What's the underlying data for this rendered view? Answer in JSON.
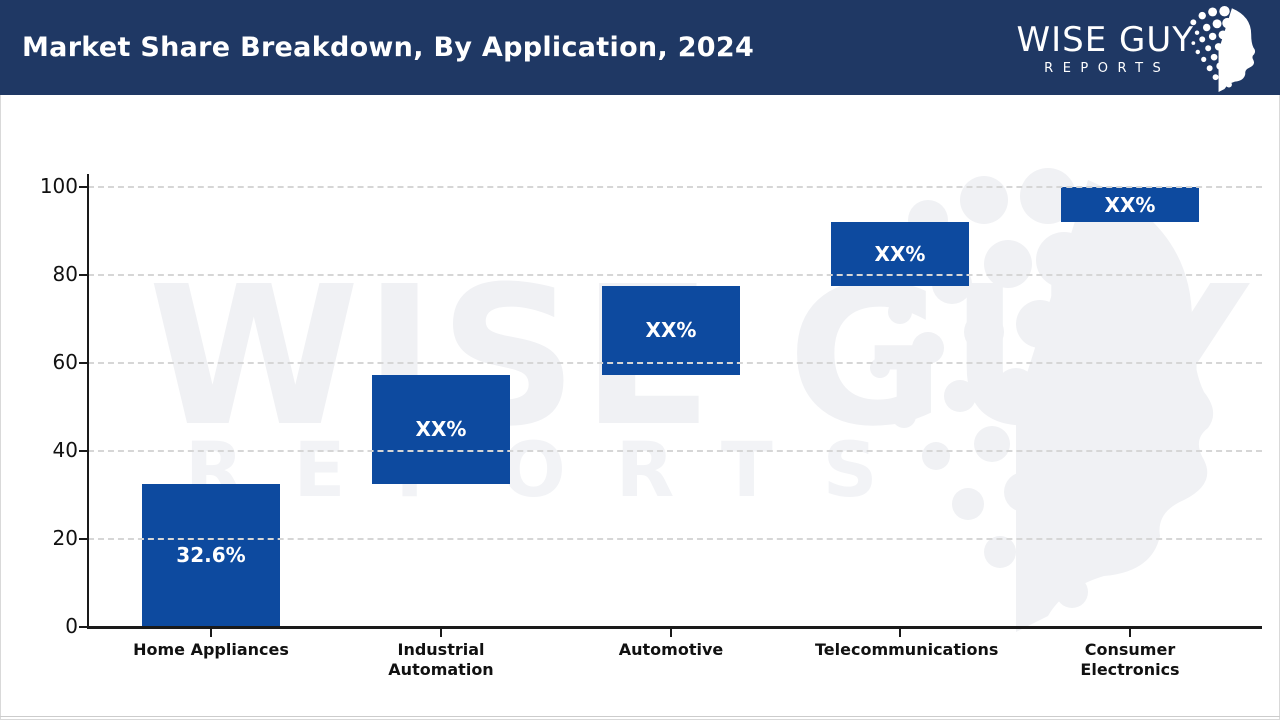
{
  "header": {
    "title": "Market Share Breakdown, By Application, 2024",
    "bg_color": "#1f3864",
    "logo": {
      "line1": "WISE GUY",
      "line2": "REPORTS"
    }
  },
  "watermark": {
    "line1": "WISE GUY",
    "line2": "REPORTS"
  },
  "chart_data": {
    "type": "bar",
    "subtype": "waterfall-stacked-segments",
    "title": "Market Share Breakdown, By Application, 2024",
    "xlabel": "",
    "ylabel": "",
    "ylim": [
      0,
      103
    ],
    "yticks": [
      0,
      20,
      40,
      60,
      80,
      100
    ],
    "grid": "horizontal dashed",
    "grid_color": "#d6d6d6",
    "bar_color": "#0d4a9f",
    "bar_label_color": "#ffffff",
    "categories": [
      "Home Appliances",
      "Industrial Automation",
      "Automotive",
      "Telecommunications",
      "Consumer Electronics"
    ],
    "segments": [
      {
        "category": "Home Appliances",
        "start": 0,
        "end": 32.6,
        "label": "32.6%"
      },
      {
        "category": "Industrial Automation",
        "start": 32.6,
        "end": 57.2,
        "label": "XX%"
      },
      {
        "category": "Automotive",
        "start": 57.2,
        "end": 77.6,
        "label": "XX%"
      },
      {
        "category": "Telecommunications",
        "start": 77.6,
        "end": 92.0,
        "label": "XX%"
      },
      {
        "category": "Consumer Electronics",
        "start": 92.0,
        "end": 100.0,
        "label": "XX%"
      }
    ]
  }
}
